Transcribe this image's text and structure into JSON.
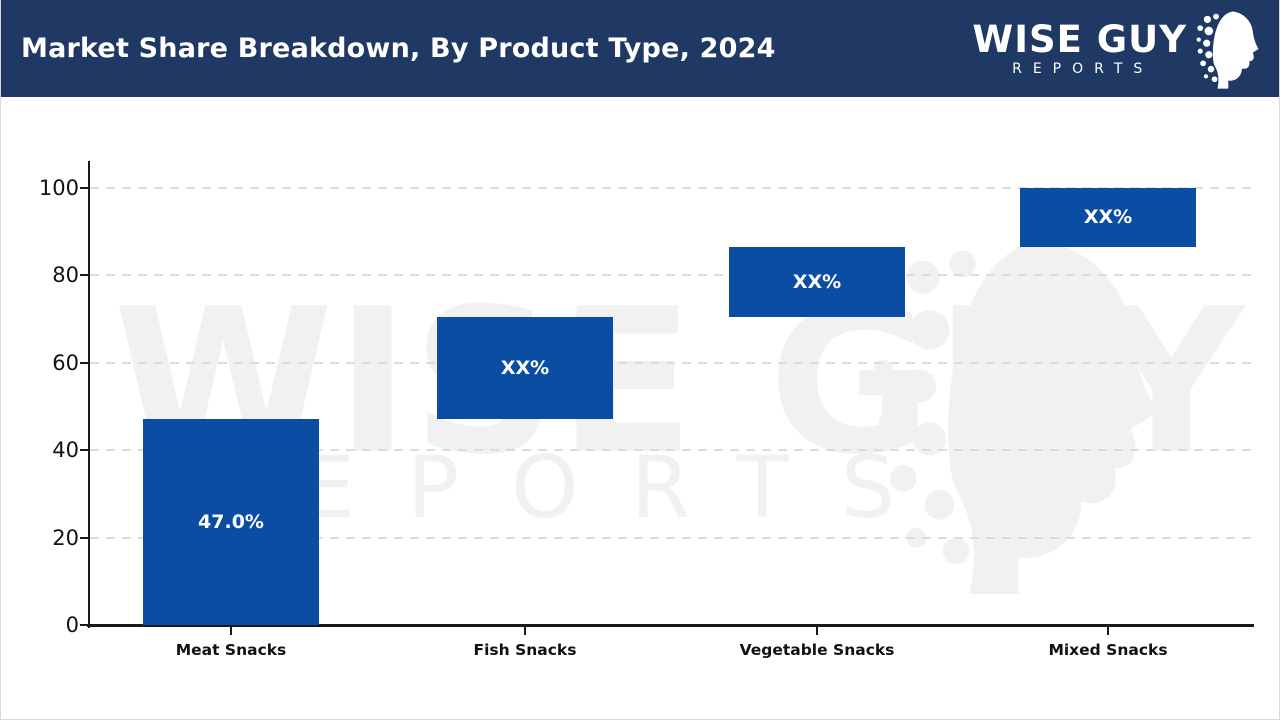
{
  "header": {
    "title": "Market Share Breakdown, By Product Type, 2024",
    "logo": {
      "line1": "WISE GUY",
      "line2": "REPORTS"
    }
  },
  "watermark": {
    "line1": "WISE GUY",
    "line2": "REPORTS"
  },
  "colors": {
    "header_bg": "#1f3864",
    "bar_fill": "#0b4da2",
    "bar_label_text": "#ffffff",
    "gridline": "#dcdcdc",
    "axis": "#1a1a1a",
    "watermark": "#f1f1f1"
  },
  "chart_data": {
    "type": "bar",
    "subtype": "waterfall",
    "title": "Market Share Breakdown, By Product Type, 2024",
    "categories": [
      "Meat Snacks",
      "Fish Snacks",
      "Vegetable Snacks",
      "Mixed Snacks"
    ],
    "bars": [
      {
        "category": "Meat Snacks",
        "start": 0,
        "end": 47,
        "value": 47.0,
        "label": "47.0%"
      },
      {
        "category": "Fish Snacks",
        "start": 47,
        "end": 70.5,
        "value": null,
        "label": "XX%"
      },
      {
        "category": "Vegetable Snacks",
        "start": 70.5,
        "end": 86.5,
        "value": null,
        "label": "XX%"
      },
      {
        "category": "Mixed Snacks",
        "start": 86.5,
        "end": 100,
        "value": null,
        "label": "XX%"
      }
    ],
    "yticks": [
      0,
      20,
      40,
      60,
      80,
      100
    ],
    "ylim": [
      0,
      105
    ],
    "xlabel": "",
    "ylabel": "",
    "grid": "horizontal-dashed",
    "legend": "none"
  }
}
